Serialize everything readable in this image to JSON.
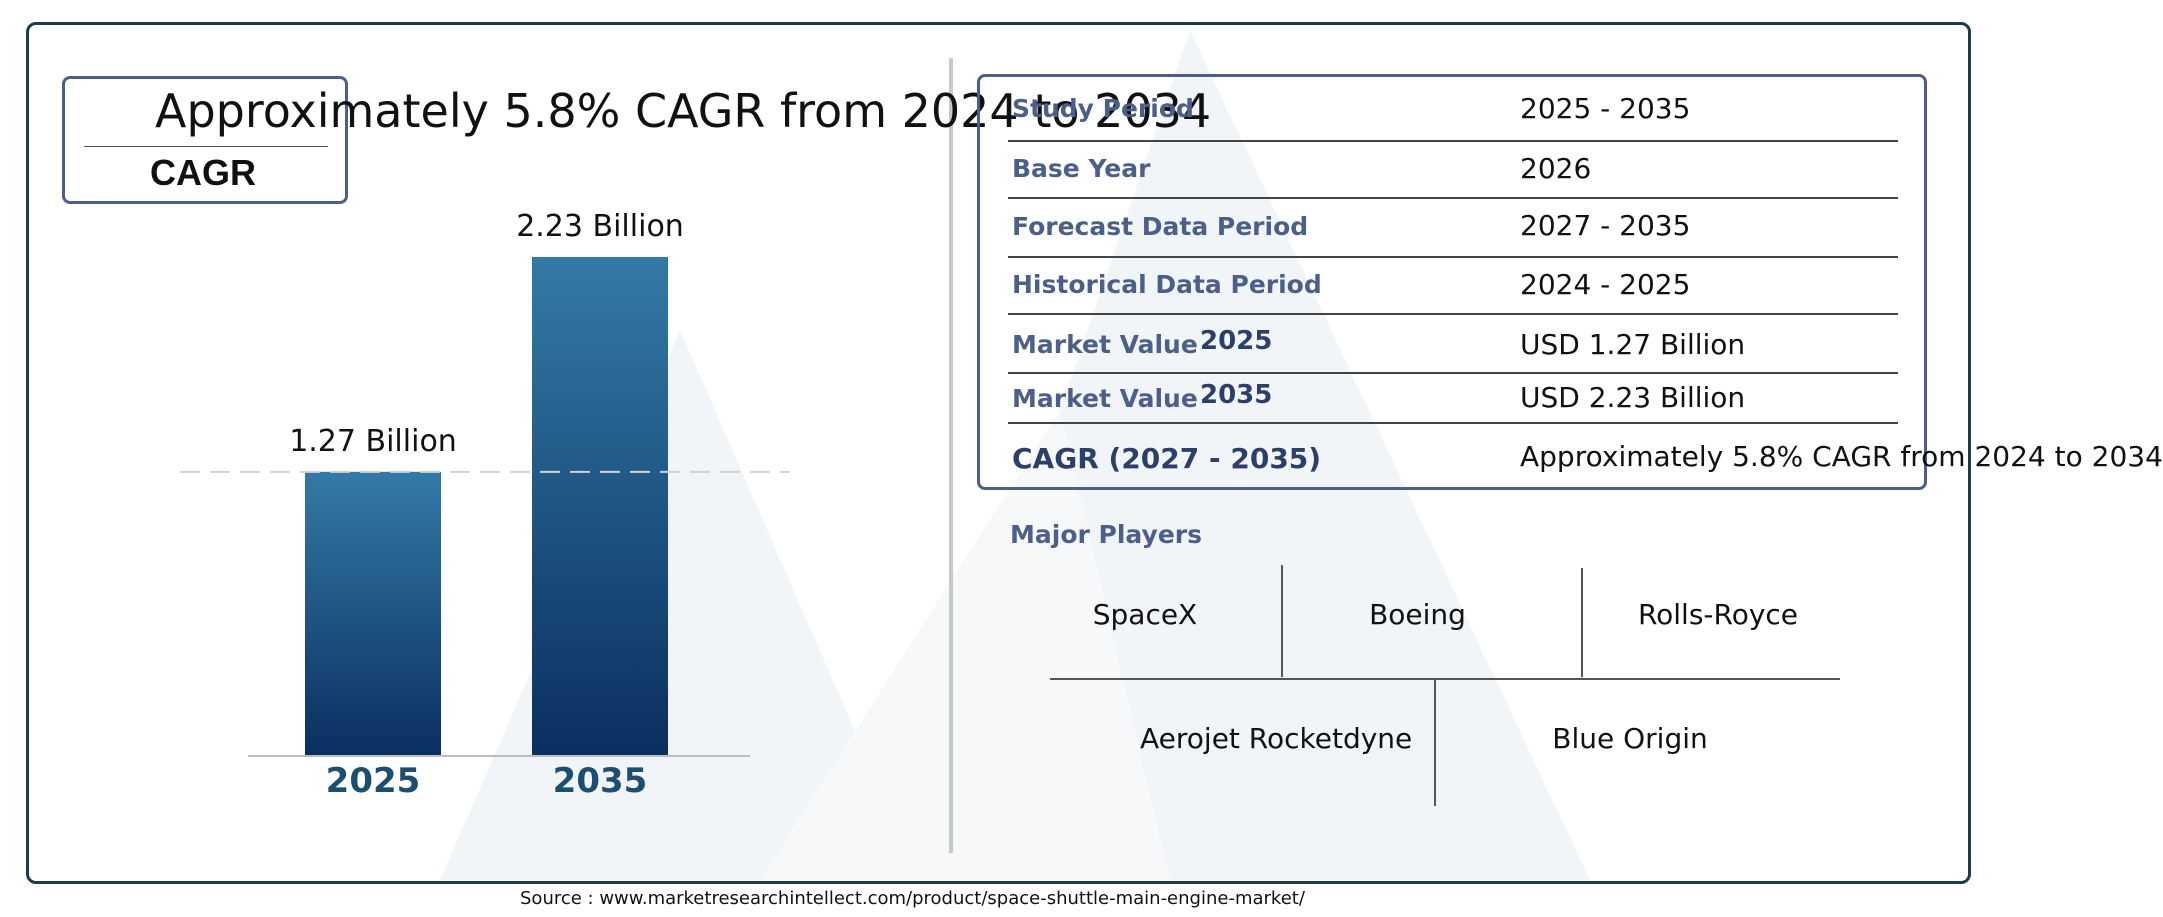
{
  "header": {
    "cagr_text": "Approximately 5.8% CAGR from 2024 to 2034",
    "cagr_label": "CAGR"
  },
  "chart_data": {
    "type": "bar",
    "categories": [
      "2025",
      "2035"
    ],
    "values": [
      1.27,
      2.23
    ],
    "value_labels": [
      "1.27 Billion",
      "2.23 Billion"
    ],
    "title": "",
    "xlabel": "",
    "ylabel": "",
    "ylim": [
      0,
      2.23
    ],
    "grid": false,
    "reference_line": 1.27
  },
  "info": {
    "rows": [
      {
        "label": "Study Period",
        "value": "2025 - 2035"
      },
      {
        "label": "Base Year",
        "value": "2026"
      },
      {
        "label": "Forecast Data Period",
        "value": "2027 - 2035"
      },
      {
        "label": "Historical Data Period",
        "value": "2024 - 2025"
      },
      {
        "label": "Market Value",
        "year": "2025",
        "value": "USD 1.27 Billion"
      },
      {
        "label": "Market Value",
        "year": "2035",
        "value": "USD 2.23 Billion"
      }
    ],
    "cagr_label": "CAGR (2027 - 2035)",
    "cagr_value": "Approximately 5.8% CAGR from 2024 to 2034"
  },
  "players": {
    "title": "Major Players",
    "names": [
      "SpaceX",
      "Boeing",
      "Rolls-Royce",
      "Aerojet Rocketdyne",
      "Blue Origin"
    ]
  },
  "footer": {
    "source": "Source : www.marketresearchintellect.com/product/space-shuttle-main-engine-market/"
  },
  "colors": {
    "bar_top": "#347aa6",
    "bar_bottom": "#0a2f60",
    "frame": "#1b3a4a",
    "accent": "#4c5f8a"
  }
}
